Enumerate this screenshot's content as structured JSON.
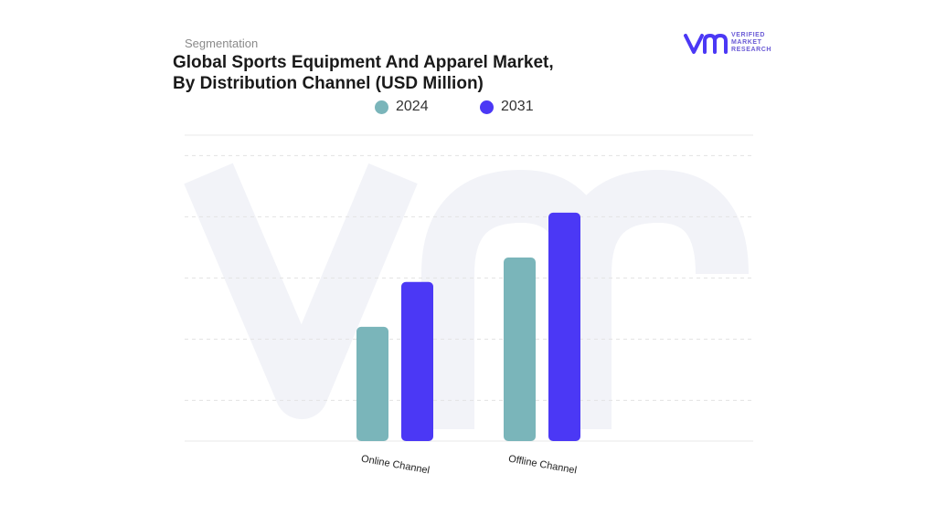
{
  "header": {
    "subtitle": "Segmentation",
    "title_line1": "Global Sports Equipment And Apparel Market,",
    "title_line2": "By Distribution Channel (USD Million)"
  },
  "logo": {
    "mark": "vmr",
    "line1": "VERIFIED",
    "line2": "MARKET",
    "line3": "RESEARCH"
  },
  "colors": {
    "series_2024": "#7ab5ba",
    "series_2031": "#4b38f5",
    "watermark": "#f2f3f8",
    "grid": "#e3e3e3"
  },
  "chart_data": {
    "type": "bar",
    "title": "Global Sports Equipment And Apparel Market, By Distribution Channel (USD Million)",
    "categories": [
      "Online Channel",
      "Offline Channel"
    ],
    "series": [
      {
        "name": "2024",
        "values": [
          2.8,
          4.5
        ]
      },
      {
        "name": "2031",
        "values": [
          3.9,
          5.6
        ]
      }
    ],
    "ylim": [
      0,
      7.5
    ],
    "grid": true,
    "legend_position": "top-center",
    "xlabel": "",
    "ylabel": ""
  }
}
